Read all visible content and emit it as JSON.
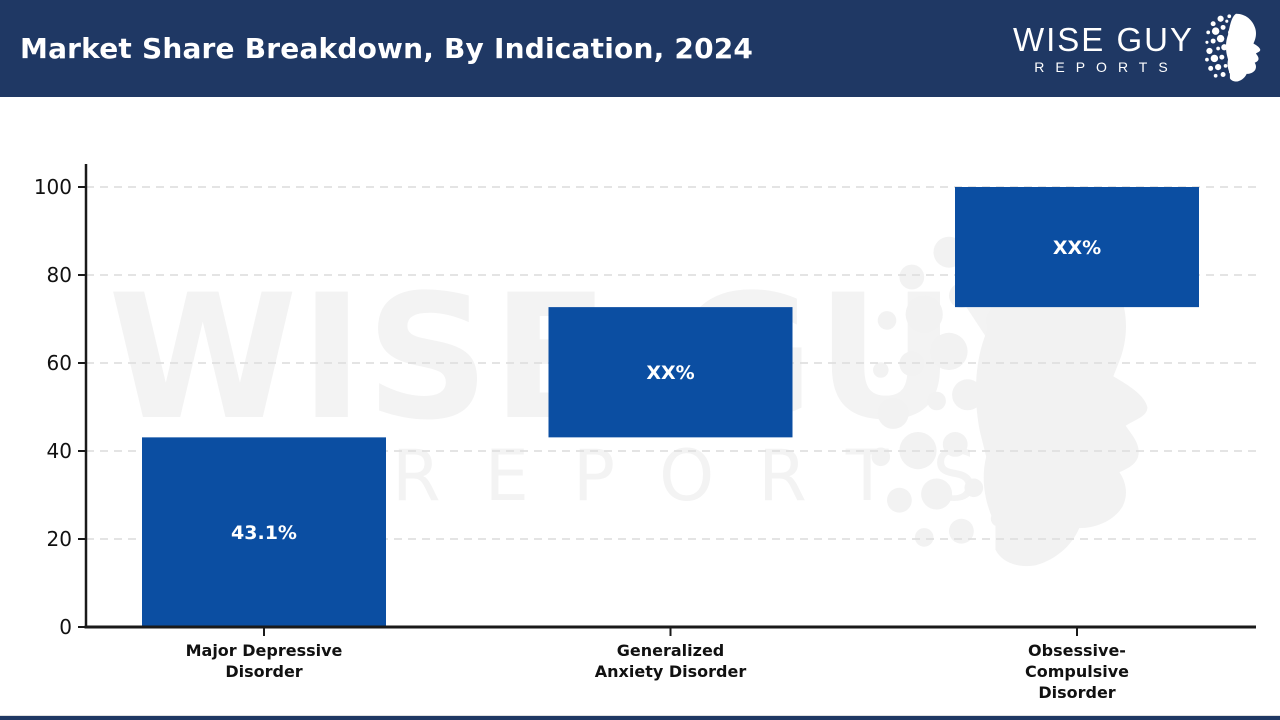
{
  "header": {
    "title": "Market Share Breakdown, By Indication, 2024",
    "logo": {
      "line1": "WISE GUY",
      "line2": "REPORTS"
    }
  },
  "watermark": {
    "line1": "WISE GUY",
    "line2": "REPORTS"
  },
  "chart_data": {
    "type": "bar",
    "subtype": "floating-waterfall-segments",
    "title": "Market Share Breakdown, By Indication, 2024",
    "categories": [
      {
        "name": "Major Depressive Disorder",
        "lines": [
          "Major Depressive",
          "Disorder"
        ]
      },
      {
        "name": "Generalized Anxiety Disorder",
        "lines": [
          "Generalized",
          "Anxiety Disorder"
        ]
      },
      {
        "name": "Obsessive-Compulsive Disorder",
        "lines": [
          "Obsessive-",
          "Compulsive",
          "Disorder"
        ]
      }
    ],
    "segments": [
      {
        "start": 0,
        "end": 43.1,
        "label": "43.1%"
      },
      {
        "start": 43.1,
        "end": 72.7,
        "label": "XX%"
      },
      {
        "start": 72.7,
        "end": 100,
        "label": "XX%"
      }
    ],
    "xlabel": "",
    "ylabel": "",
    "ylim": [
      0,
      100
    ],
    "yticks": [
      0,
      20,
      40,
      60,
      80,
      100
    ],
    "grid": "horizontal-dashed",
    "legend": "none",
    "bar_color": "#0b4ea2",
    "label_color": "#ffffff"
  },
  "colors": {
    "header_bg": "#1f3864",
    "footer_bg": "#1f3864",
    "bar": "#0b4ea2",
    "grid": "#dcdcdc",
    "axis": "#1a1a1a",
    "tick_text": "#111111",
    "watermark": "#f3f3f3"
  }
}
